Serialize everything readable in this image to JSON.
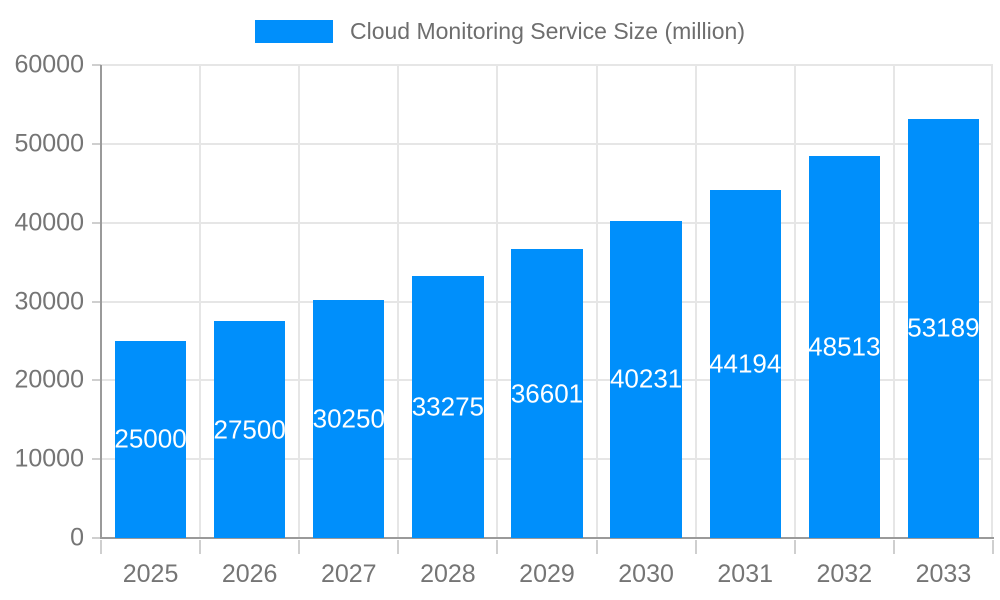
{
  "chart_data": {
    "type": "bar",
    "title": "Cloud Monitoring Service Size (million)",
    "categories": [
      "2025",
      "2026",
      "2027",
      "2028",
      "2029",
      "2030",
      "2031",
      "2032",
      "2033"
    ],
    "values": [
      25000,
      27500,
      30250,
      33275,
      36601,
      40231,
      44194,
      48513,
      53189
    ],
    "xlabel": "",
    "ylabel": "",
    "ylim": [
      0,
      60000
    ],
    "yticks": [
      0,
      10000,
      20000,
      30000,
      40000,
      50000,
      60000
    ],
    "grid": true,
    "legend_position": "top",
    "bar_labels_inside": true,
    "colors": {
      "bar": "#008ffb",
      "bar_label": "#ffffff",
      "grid_line": "#e6e6e6",
      "tick_mark": "#cfcfcf",
      "axis_line": "#9a9a9a",
      "axis_label": "#757575",
      "title": "#6e6e6e",
      "background": "#ffffff"
    }
  }
}
